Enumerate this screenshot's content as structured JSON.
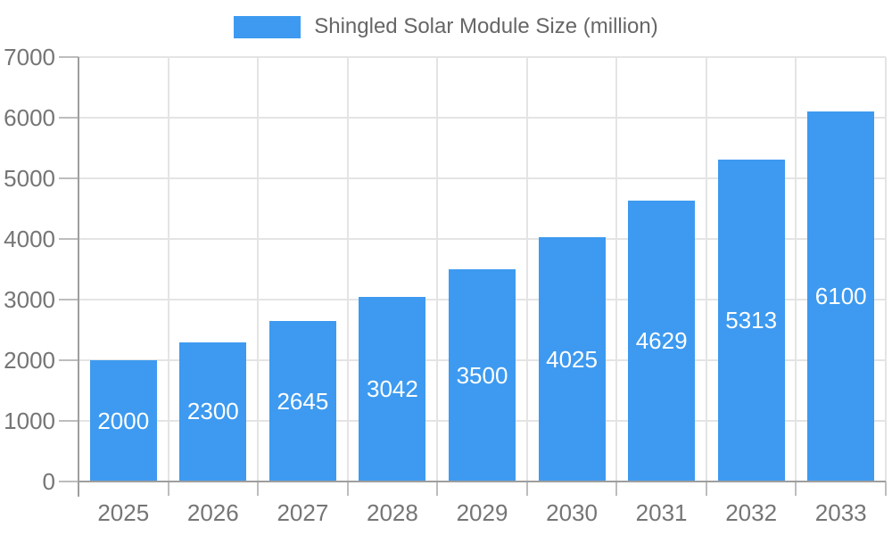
{
  "chart_data": {
    "type": "bar",
    "title": "",
    "series_name": "Shingled Solar Module Size (million)",
    "categories": [
      "2025",
      "2026",
      "2027",
      "2028",
      "2029",
      "2030",
      "2031",
      "2032",
      "2033"
    ],
    "values": [
      2000,
      2300,
      2645,
      3042,
      3500,
      4025,
      4629,
      5313,
      6100
    ],
    "xlabel": "",
    "ylabel": "",
    "ylim": [
      0,
      7000
    ],
    "ytick_step": 1000,
    "yticks": [
      0,
      1000,
      2000,
      3000,
      4000,
      5000,
      6000,
      7000
    ],
    "grid": true,
    "legend_position": "top",
    "bar_color": "#3d9af0",
    "value_label_color": "#ffffff",
    "value_labels_inside": true
  },
  "colors": {
    "background": "#ffffff",
    "gridline": "#e4e4e4",
    "axis_line": "#9e9e9e",
    "tick_mark": "#bdbdbd",
    "tick_label": "#757575",
    "legend_text": "#666666"
  }
}
